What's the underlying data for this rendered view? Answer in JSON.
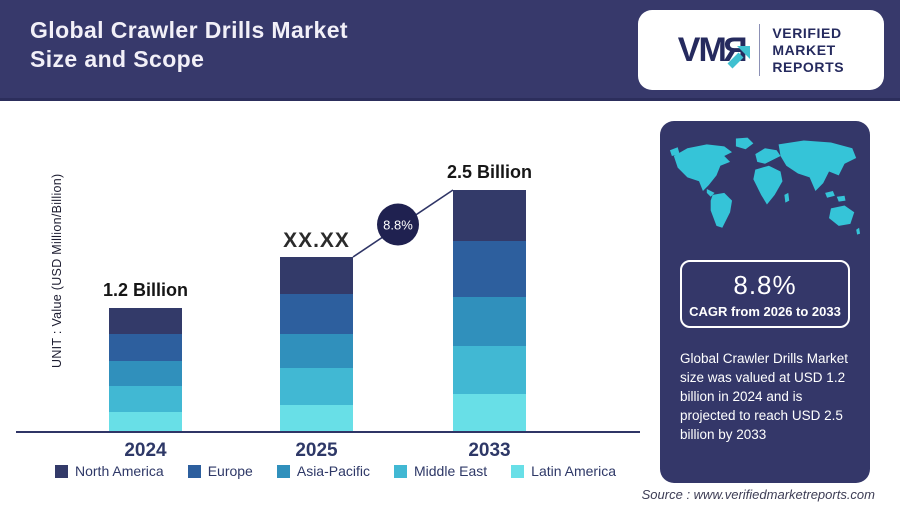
{
  "header": {
    "title_line1": "Global Crawler Drills Market",
    "title_line2": "Size and Scope",
    "logo": {
      "mark_vm": "VM",
      "mark_r": "R",
      "brand_line1": "VERIFIED",
      "brand_line2": "MARKET",
      "brand_line3": "REPORTS"
    }
  },
  "chart_data": {
    "type": "bar",
    "stacked": true,
    "title": "Global Crawler Drills Market Size and Scope",
    "ylabel": "UNIT : Value (USD Million/Billion)",
    "categories": [
      "2024",
      "2025",
      "2033"
    ],
    "bar_labels": [
      "1.2 Billion",
      "XX.XX",
      "2.5 Billion"
    ],
    "totals_usd_billion": [
      1.2,
      null,
      2.5
    ],
    "series": [
      {
        "name": "North America",
        "color": "#333a69",
        "values_est_billion": [
          0.25,
          0.37,
          0.53
        ],
        "px": [
          26,
          37,
          51
        ]
      },
      {
        "name": "Europe",
        "color": "#2d5f9e",
        "values_est_billion": [
          0.26,
          0.4,
          0.58
        ],
        "px": [
          27,
          40,
          56
        ]
      },
      {
        "name": "Asia-Pacific",
        "color": "#3090bc",
        "values_est_billion": [
          0.24,
          0.34,
          0.51
        ],
        "px": [
          25,
          34,
          49
        ]
      },
      {
        "name": "Middle East",
        "color": "#41b8d3",
        "values_est_billion": [
          0.25,
          0.37,
          0.5
        ],
        "px": [
          26,
          37,
          48
        ]
      },
      {
        "name": "Latin America",
        "color": "#68dfe7",
        "values_est_billion": [
          0.19,
          0.27,
          0.39
        ],
        "px": [
          20,
          27,
          38
        ]
      }
    ],
    "annotation": {
      "label": "8.8%",
      "circle_color": "#1f2150"
    },
    "legend_position": "bottom",
    "grid": false
  },
  "sidebar": {
    "cagr_value": "8.8%",
    "cagr_caption": "CAGR from 2026 to 2033",
    "description": "Global Crawler Drills Market  size was valued at USD 1.2 billion in 2024 and is projected to reach USD 2.5 billion by 2033"
  },
  "footer": {
    "source": "Source : www.verifiedmarketreports.com"
  },
  "colors": {
    "header_bg": "#37396b",
    "card_bg": "#343769",
    "map_teal": "#35c4d8",
    "arrow_teal": "#3fc0d0",
    "axis": "#2f3566",
    "tick_text": "#2e3867"
  }
}
